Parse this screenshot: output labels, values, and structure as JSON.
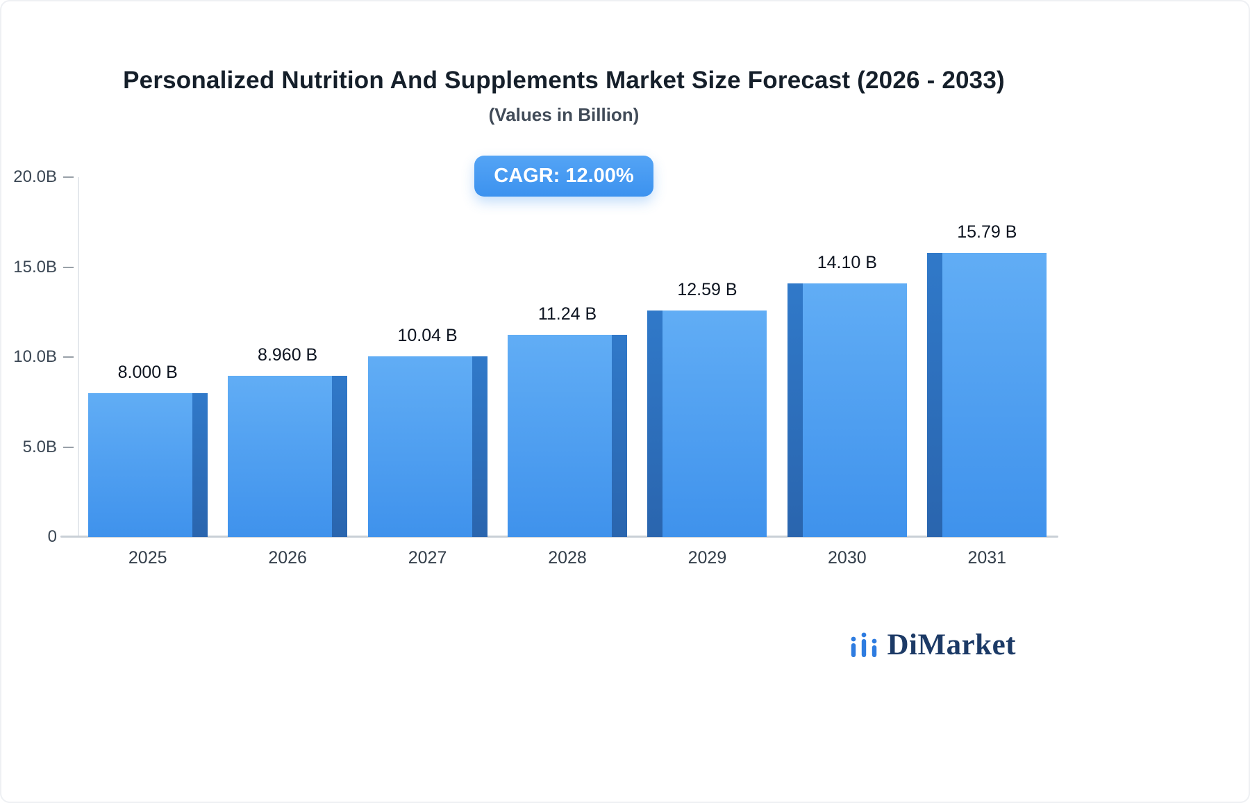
{
  "header": {
    "title": "Personalized Nutrition And Supplements Market Size Forecast (2026 - 2033)",
    "subtitle": "(Values in Billion)",
    "cagr_badge": "CAGR: 12.00%"
  },
  "chart_data": {
    "type": "bar",
    "title": "Personalized Nutrition And Supplements Market Size Forecast (2026 - 2033)",
    "subtitle": "(Values in Billion)",
    "categories": [
      "2025",
      "2026",
      "2027",
      "2028",
      "2029",
      "2030",
      "2031"
    ],
    "values": [
      8.0,
      8.96,
      10.04,
      11.24,
      12.59,
      14.1,
      15.79
    ],
    "value_labels": [
      "8.000 B",
      "8.960 B",
      "10.04 B",
      "11.24 B",
      "12.59 B",
      "14.10 B",
      "15.79 B"
    ],
    "xlabel": "",
    "ylabel": "",
    "ylim": [
      0,
      20
    ],
    "yticks": [
      0,
      5,
      10,
      15,
      20
    ],
    "ytick_labels": [
      "0",
      "5.0B",
      "10.0B",
      "15.0B",
      "20.0B"
    ],
    "grid": false,
    "legend": false,
    "annotations": [
      "CAGR: 12.00%"
    ],
    "colors": {
      "bar_top": "#61adf5",
      "bar_bottom": "#3f92ec",
      "bar_side_face": "#2d6fbd",
      "badge": "#3c92ef",
      "axis_line": "#c9cfd6",
      "brand_navy": "#1c3a66"
    }
  },
  "footer": {
    "brand": "DiMarket",
    "logo_icon": "bar-chart-dots-icon"
  }
}
